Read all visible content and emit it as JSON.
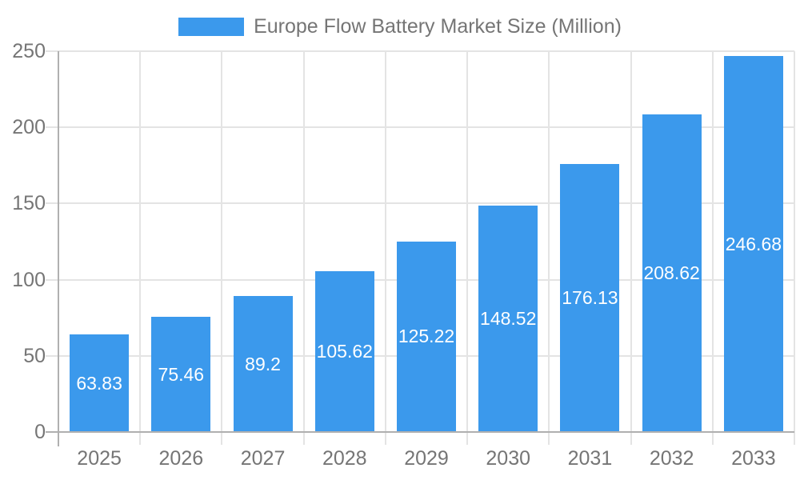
{
  "chart_data": {
    "type": "bar",
    "title": "Europe Flow Battery Market Size (Million)",
    "categories": [
      "2025",
      "2026",
      "2027",
      "2028",
      "2029",
      "2030",
      "2031",
      "2032",
      "2033"
    ],
    "values": [
      63.83,
      75.46,
      89.2,
      105.62,
      125.22,
      148.52,
      176.13,
      208.62,
      246.68
    ],
    "value_labels": [
      "63.83",
      "75.46",
      "89.2",
      "105.62",
      "125.22",
      "148.52",
      "176.13",
      "208.62",
      "246.68"
    ],
    "xlabel": "",
    "ylabel": "",
    "ylim": [
      0,
      250
    ],
    "yticks": [
      0,
      50,
      100,
      150,
      200,
      250
    ],
    "ytick_labels": [
      "0",
      "50",
      "100",
      "150",
      "200",
      "250"
    ],
    "legend_position": "top",
    "grid": true,
    "colors": {
      "bar": "#3B99EC",
      "bar_value_label": "#ffffff",
      "axis_text": "#757575",
      "gridline": "#e4e4e4",
      "axis_line": "#b0b0b0"
    }
  }
}
